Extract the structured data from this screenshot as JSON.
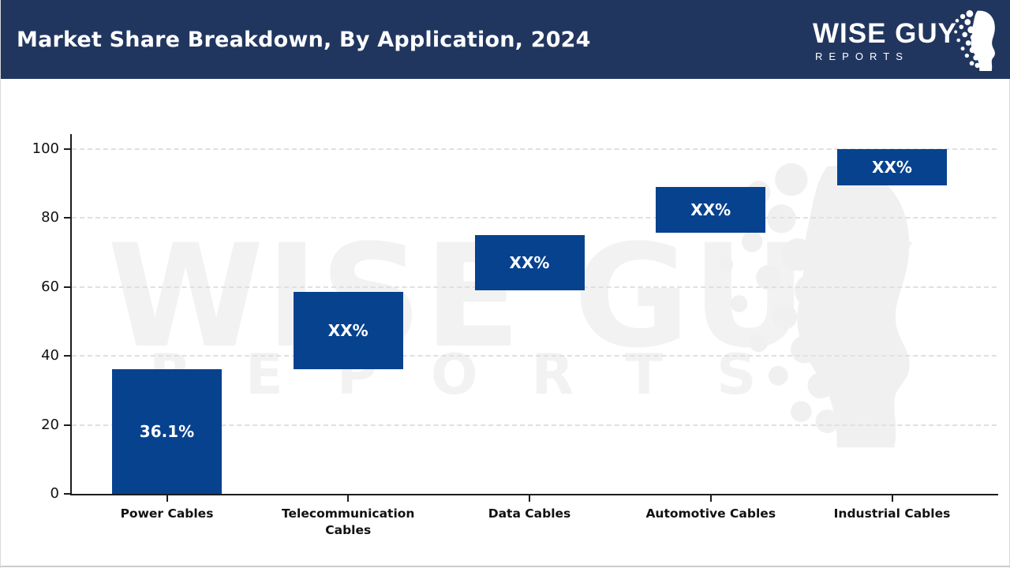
{
  "header": {
    "title": "Market Share Breakdown, By Application, 2024",
    "bg_color": "#21365f",
    "logo": {
      "line1": "WISE GUY",
      "line2": "REPORTS"
    }
  },
  "watermark": {
    "line1": "WISE GUY",
    "line2": "REPORTS"
  },
  "chart_data": {
    "type": "bar",
    "variant": "waterfall",
    "title": "Market Share Breakdown, By Application, 2024",
    "categories": [
      "Power Cables",
      "Telecommunication Cables",
      "Data Cables",
      "Automotive Cables",
      "Industrial Cables"
    ],
    "bars": [
      {
        "category": "Power Cables",
        "start": 0,
        "end": 36.1,
        "label": "36.1%"
      },
      {
        "category": "Telecommunication Cables",
        "start": 36.1,
        "end": 58.5,
        "label": "XX%"
      },
      {
        "category": "Data Cables",
        "start": 59,
        "end": 75,
        "label": "XX%"
      },
      {
        "category": "Automotive Cables",
        "start": 75.7,
        "end": 89,
        "label": "XX%"
      },
      {
        "category": "Industrial Cables",
        "start": 89.4,
        "end": 100,
        "label": "XX%"
      }
    ],
    "xlabel": "",
    "ylabel": "",
    "ylim": [
      0,
      100
    ],
    "yticks": [
      0,
      20,
      40,
      60,
      80,
      100
    ],
    "grid": "horizontal-dashed",
    "legend": "none",
    "bar_color": "#07428f",
    "bar_label_color": "#ffffff"
  }
}
